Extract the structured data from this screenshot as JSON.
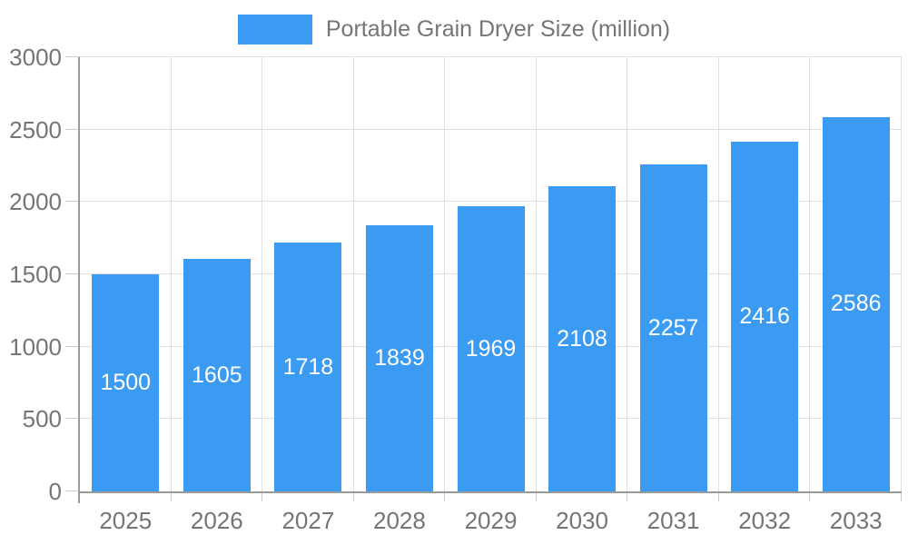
{
  "colors": {
    "bar": "#3b9bf2",
    "bar_label": "#ffffff",
    "axis_text": "#757575",
    "gridline": "#e0e0e0",
    "tick": "#cccccc",
    "axis_line": "#999999",
    "background": "#ffffff"
  },
  "chart_data": {
    "type": "bar",
    "title": "Portable Grain Dryer Size (million)",
    "categories": [
      "2025",
      "2026",
      "2027",
      "2028",
      "2029",
      "2030",
      "2031",
      "2032",
      "2033"
    ],
    "values": [
      1500,
      1605,
      1718,
      1839,
      1969,
      2108,
      2257,
      2416,
      2586
    ],
    "xlabel": "",
    "ylabel": "",
    "ylim": [
      0,
      3000
    ],
    "yticks": [
      0,
      500,
      1000,
      1500,
      2000,
      2500,
      3000
    ],
    "grid": true,
    "legend_position": "top",
    "value_label_position": "inside-center"
  }
}
